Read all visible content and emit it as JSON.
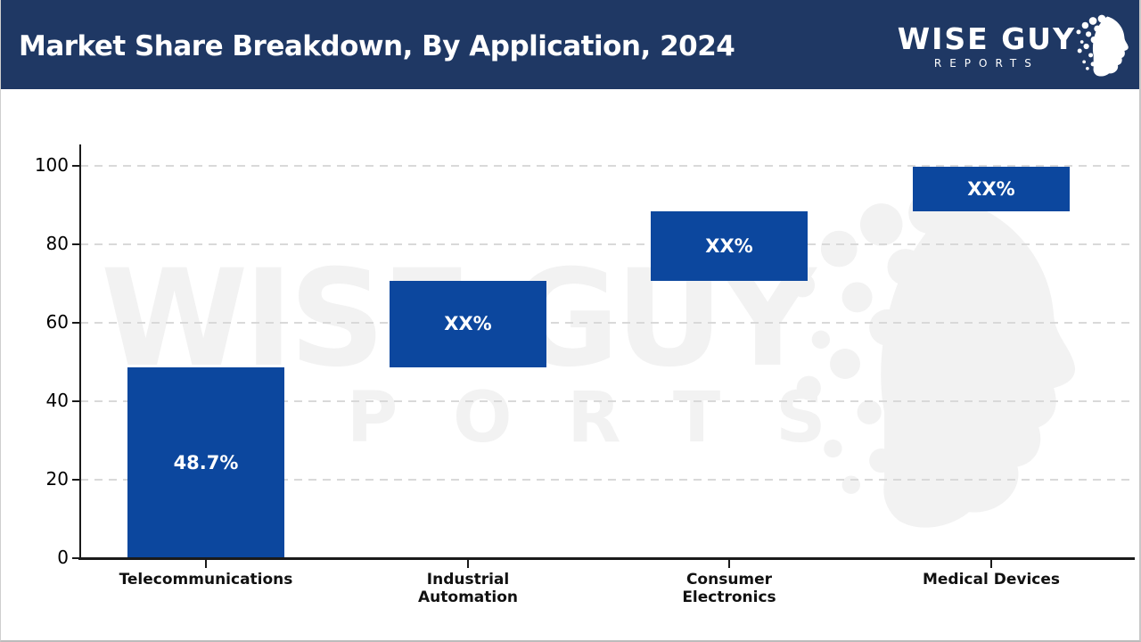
{
  "header": {
    "title": "Market Share Breakdown, By Application, 2024",
    "logo": {
      "name": "Wise Guy Reports",
      "line1": "WISE GUY",
      "line2": "REPORTS"
    }
  },
  "watermark": {
    "line1": "WISE GUY",
    "line2": "PORTS"
  },
  "colors": {
    "header_bg": "#1f3864",
    "bar_blue": "#0c479e",
    "watermark_gray": "#f2f2f2",
    "gridline_gray": "#d9d9d9",
    "axis_black": "#1a1a1a"
  },
  "chart_data": {
    "type": "bar",
    "subtype": "waterfall",
    "title": "Market Share Breakdown, By Application, 2024",
    "categories": [
      "Telecommunications",
      "Industrial Automation",
      "Consumer Electronics",
      "Medical Devices"
    ],
    "category_lines": [
      [
        "Telecommunications"
      ],
      [
        "Industrial",
        "Automation"
      ],
      [
        "Consumer",
        "Electronics"
      ],
      [
        "Medical Devices"
      ]
    ],
    "series": [
      {
        "name": "Market share (%)",
        "segments": [
          {
            "category": "Telecommunications",
            "start": 0,
            "end": 48.7,
            "label": "48.7%"
          },
          {
            "category": "Industrial Automation",
            "start": 48.7,
            "end": 70.7,
            "label": "XX%"
          },
          {
            "category": "Consumer Electronics",
            "start": 70.7,
            "end": 88.4,
            "label": "XX%"
          },
          {
            "category": "Medical Devices",
            "start": 88.4,
            "end": 99.8,
            "label": "XX%"
          }
        ]
      }
    ],
    "xlabel": "",
    "ylabel": "",
    "ylim": [
      0,
      100
    ],
    "yticks": [
      0,
      20,
      40,
      60,
      80,
      100
    ],
    "grid": "horizontal dashed",
    "legend": "none",
    "bar_color": "#0c479e",
    "bar_label_color": "#ffffff"
  }
}
